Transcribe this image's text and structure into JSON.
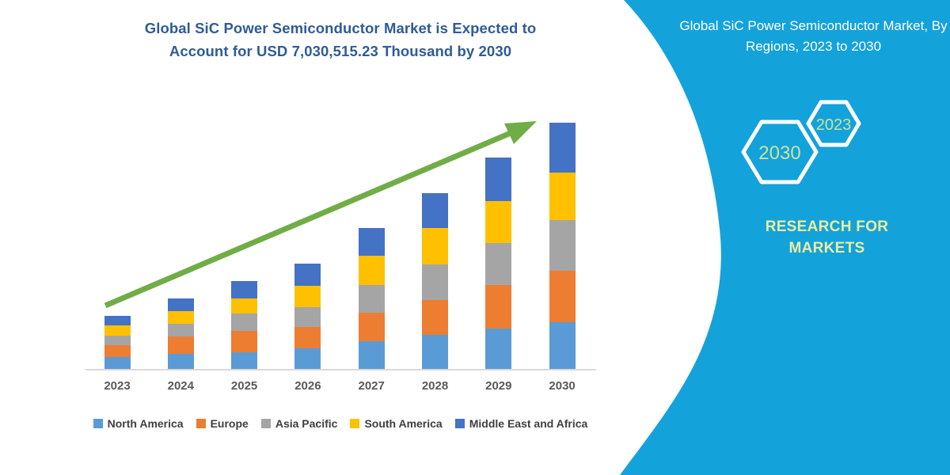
{
  "chart_data": {
    "type": "bar",
    "stacked": true,
    "title": "Global SiC Power Semiconductor Market is Expected to Account for USD 7,030,515.23 Thousand by 2030",
    "xlabel": "",
    "ylabel": "",
    "unit": "USD Thousand (values estimated from bar heights; no y-axis shown)",
    "grid": false,
    "legend_position": "bottom",
    "categories": [
      "2023",
      "2024",
      "2025",
      "2026",
      "2027",
      "2028",
      "2029",
      "2030"
    ],
    "series": [
      {
        "name": "North America",
        "color": "#5B9BD5",
        "values": [
          340000,
          430000,
          470000,
          595000,
          790000,
          965000,
          1150000,
          1340000
        ]
      },
      {
        "name": "Europe",
        "color": "#ED7D31",
        "values": [
          345000,
          505000,
          625000,
          605000,
          815000,
          1000000,
          1245000,
          1470000
        ]
      },
      {
        "name": "Asia Pacific",
        "color": "#A5A5A5",
        "values": [
          265000,
          345000,
          495000,
          565000,
          790000,
          1015000,
          1205000,
          1445000
        ]
      },
      {
        "name": "South America",
        "color": "#FFC000",
        "values": [
          285000,
          370000,
          420000,
          615000,
          830000,
          1055000,
          1190000,
          1355000
        ]
      },
      {
        "name": "Middle East and Africa",
        "color": "#4472C4",
        "values": [
          290000,
          355000,
          505000,
          620000,
          790000,
          975000,
          1245000,
          1420515.23
        ]
      }
    ],
    "totals_by_year": [
      1525000,
      2005000,
      2515000,
      3000000,
      4015000,
      5010000,
      6035000,
      7030515.23
    ],
    "annotations": [
      "green upward trend arrow from 2023 bar to above 2030 bar"
    ]
  },
  "ui": {
    "chart_title_lines": {
      "line1": "Global SiC Power Semiconductor Market is Expected to",
      "line2": "Account for USD 7,030,515.23 Thousand by 2030"
    },
    "title_color": "#2F5B98",
    "axis_color": "#D9D9D9",
    "axis_label_color": "#595959",
    "trend_arrow_color": "#70AD47",
    "side_panel": {
      "background": "#14A2DB",
      "title": "Global SiC Power Semiconductor Market, By Regions, 2023 to 2030",
      "hexagons": [
        {
          "label": "2030"
        },
        {
          "label": "2023"
        }
      ],
      "hexagon_outline_color": "#FFFFFF",
      "hexagon_text_color": "#C9E39B",
      "brand": "RESEARCH FOR MARKETS",
      "brand_color": "#E9EFA3"
    }
  }
}
